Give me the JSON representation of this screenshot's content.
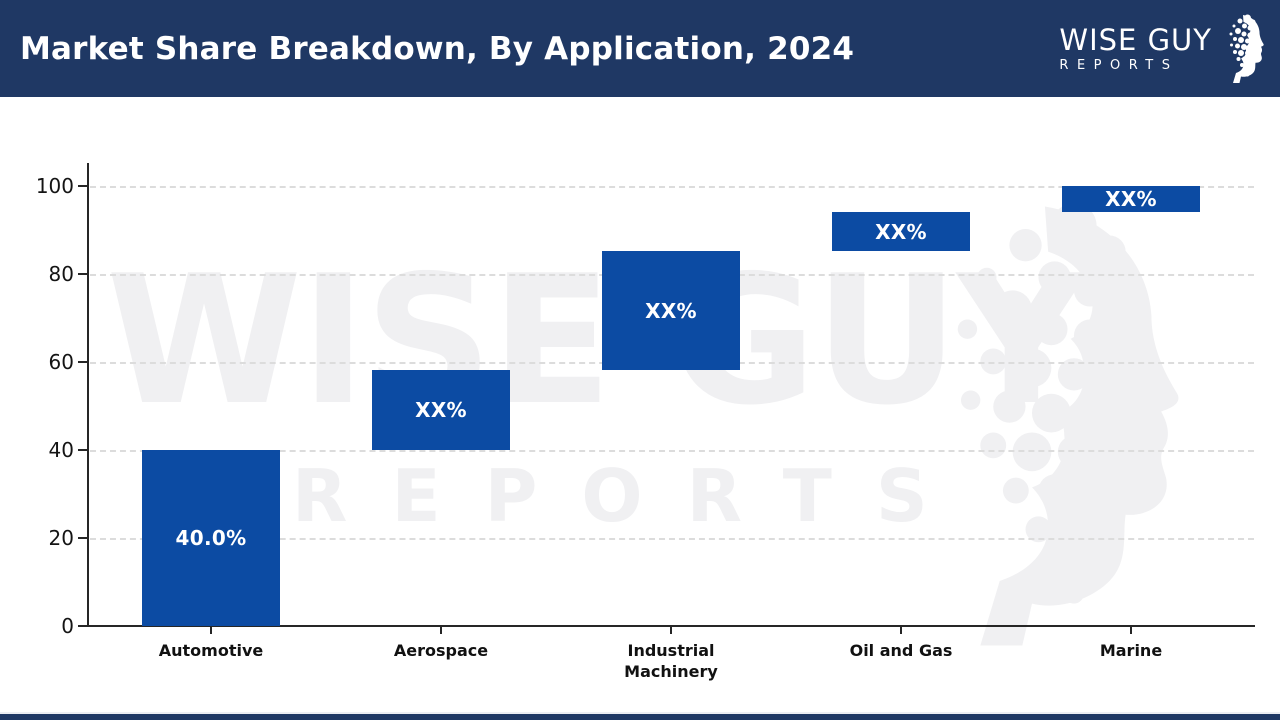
{
  "header": {
    "title": "Market Share Breakdown, By Application, 2024",
    "logo": {
      "wordmark": "WISE GUY",
      "subtext": "REPORTS",
      "head_icon": "dotted-head-profile-icon"
    }
  },
  "watermark": {
    "line1": "WISE GUY",
    "line2": "REPORTS",
    "head_icon": "dotted-head-profile-icon"
  },
  "colors": {
    "header_bg": "#1f3864",
    "footer_bg": "#1f3864",
    "bar": "#0c4ba3",
    "bar_label": "#ffffff",
    "gridline": "#dcdcdc",
    "axis_spine": "#262626",
    "watermark": "#f0f0f2"
  },
  "chart_data": {
    "type": "bar",
    "subtype": "waterfall",
    "title": "",
    "xlabel": "",
    "ylabel": "",
    "grid": "horizontal-dashed",
    "legend": "none",
    "ylim": [
      0,
      105
    ],
    "y_ticks": [
      0,
      20,
      40,
      60,
      80,
      100
    ],
    "categories": [
      "Automotive",
      "Aerospace",
      "Industrial\nMachinery",
      "Oil and Gas",
      "Marine"
    ],
    "segments": [
      {
        "category": "Automotive",
        "start": 0,
        "end": 40,
        "value": 40.0,
        "label": "40.0%"
      },
      {
        "category": "Aerospace",
        "start": 40,
        "end": 58.2,
        "value": 18.2,
        "label": "XX%"
      },
      {
        "category": "Industrial Machinery",
        "start": 58.2,
        "end": 85.2,
        "value": 27.0,
        "label": "XX%"
      },
      {
        "category": "Oil and Gas",
        "start": 85.2,
        "end": 94.0,
        "value": 8.8,
        "label": "XX%"
      },
      {
        "category": "Marine",
        "start": 94.0,
        "end": 100,
        "value": 6.0,
        "label": "XX%"
      }
    ]
  }
}
